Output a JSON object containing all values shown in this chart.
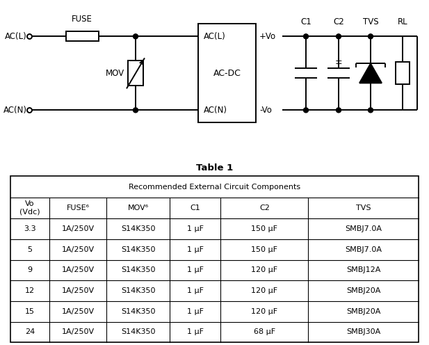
{
  "title": "Table 1",
  "table_header": "Recommended External Circuit Components",
  "col_headers": [
    "Vo\n(Vdc)",
    "FUSE⁶",
    "MOV⁶",
    "C1",
    "C2",
    "TVS"
  ],
  "rows": [
    [
      "3.3",
      "1A/250V",
      "S14K350",
      "1 μF",
      "150 μF",
      "SMBJ7.0A"
    ],
    [
      "5",
      "1A/250V",
      "S14K350",
      "1 μF",
      "150 μF",
      "SMBJ7.0A"
    ],
    [
      "9",
      "1A/250V",
      "S14K350",
      "1 μF",
      "120 μF",
      "SMBJ12A"
    ],
    [
      "12",
      "1A/250V",
      "S14K350",
      "1 μF",
      "120 μF",
      "SMBJ20A"
    ],
    [
      "15",
      "1A/250V",
      "S14K350",
      "1 μF",
      "120 μF",
      "SMBJ20A"
    ],
    [
      "24",
      "1A/250V",
      "S14K350",
      "1 μF",
      "68 μF",
      "SMBJ30A"
    ]
  ],
  "bg_color": "#ffffff",
  "line_color": "#000000",
  "text_color": "#000000"
}
